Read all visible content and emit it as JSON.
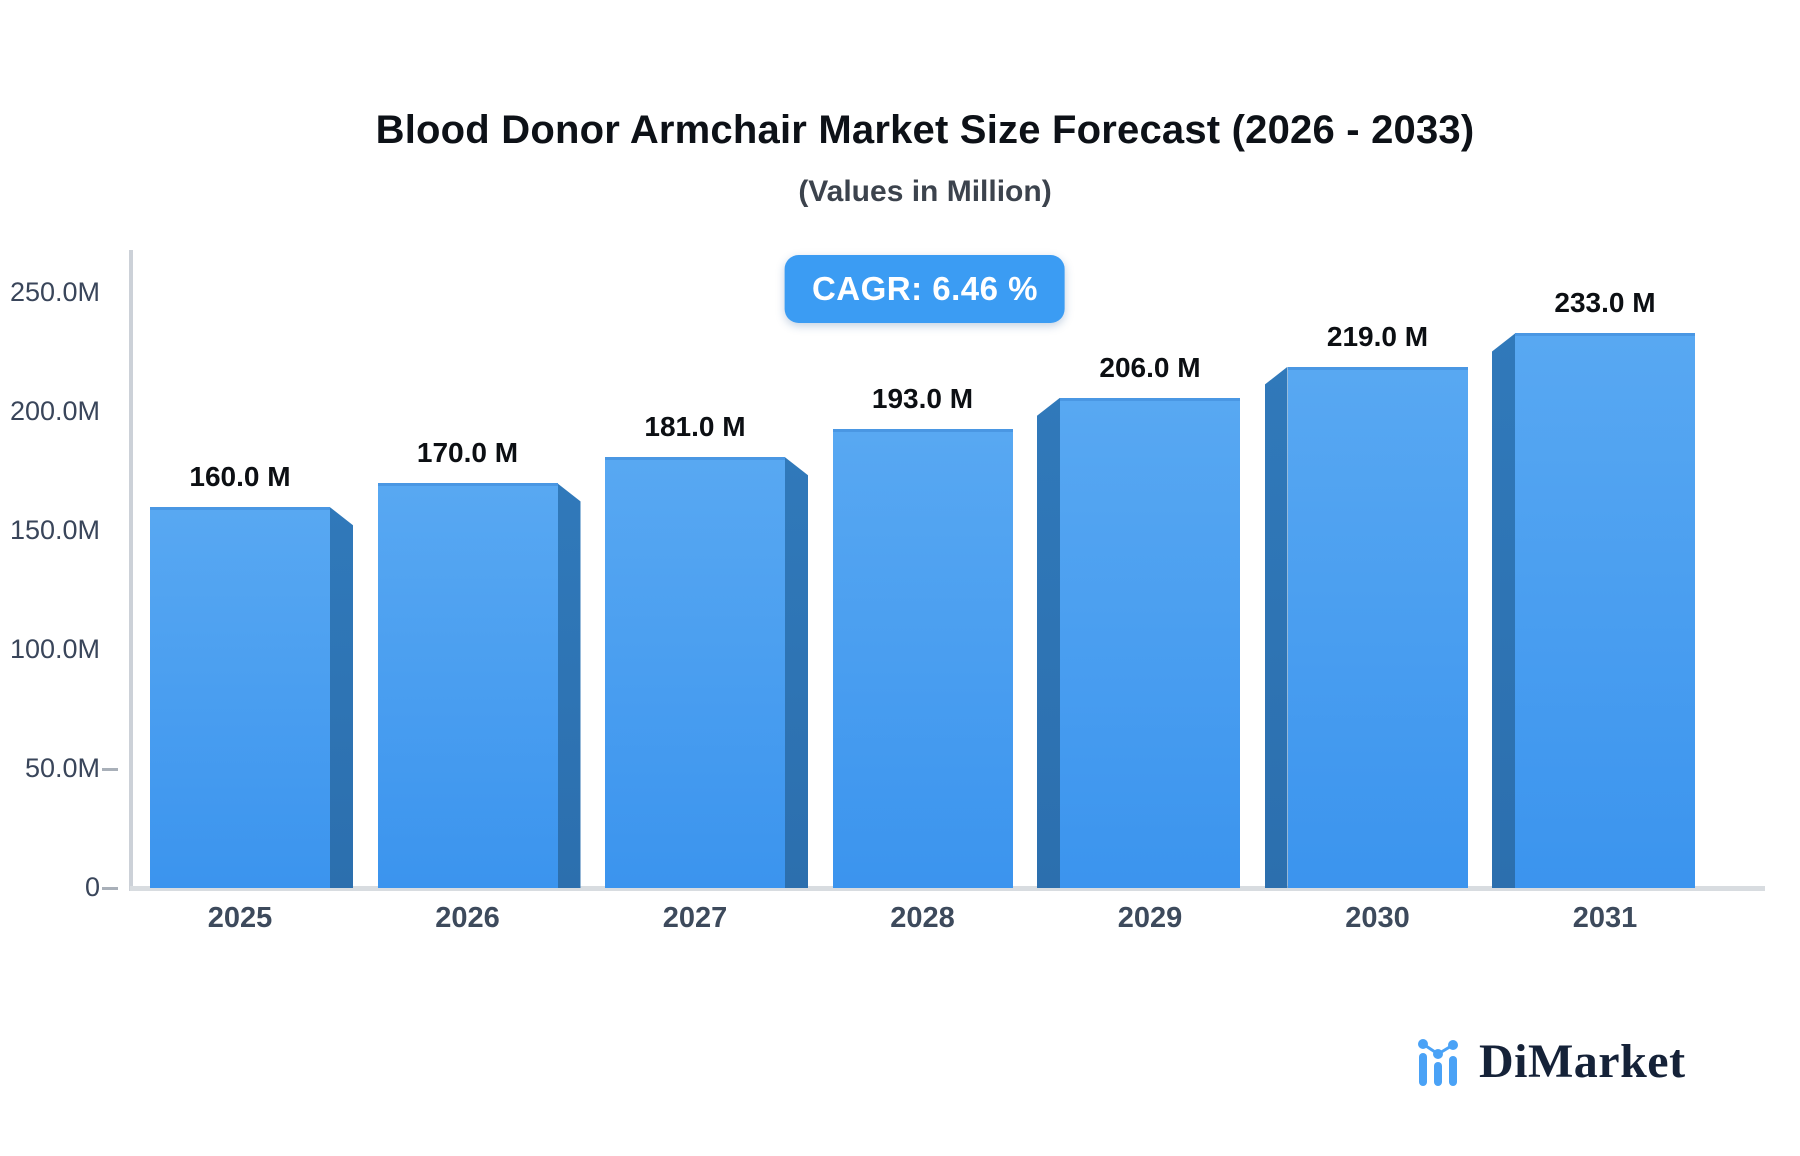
{
  "chart_data": {
    "type": "bar",
    "title": "Blood Donor Armchair Market Size Forecast (2026 - 2033)",
    "subtitle": "(Values in Million)",
    "categories": [
      "2025",
      "2026",
      "2027",
      "2028",
      "2029",
      "2030",
      "2031"
    ],
    "values": [
      160,
      170,
      181,
      193,
      206,
      219,
      233
    ],
    "value_labels": [
      "160.0 M",
      "170.0 M",
      "181.0 M",
      "193.0 M",
      "206.0 M",
      "219.0 M",
      "233.0 M"
    ],
    "unit": "Million",
    "ylim": [
      0,
      250
    ],
    "y_ticks": [
      {
        "label": "250.0M",
        "value": 250,
        "dash": false
      },
      {
        "label": "200.0M",
        "value": 200,
        "dash": false
      },
      {
        "label": "150.0M",
        "value": 150,
        "dash": false
      },
      {
        "label": "100.0M",
        "value": 100,
        "dash": false
      },
      {
        "label": "50.0M",
        "value": 50,
        "dash": true
      },
      {
        "label": "0",
        "value": 0,
        "dash": true
      }
    ],
    "grid": false,
    "legend": false
  },
  "cagr_badge": {
    "label": "CAGR: 6.46 %"
  },
  "brand": {
    "name": "DiMarket",
    "icon": "bar-chart-logo-icon"
  },
  "colors": {
    "bar_face_top": "#58a8f2",
    "bar_face_bottom": "#3b94ee",
    "bar_side_top": "#3079ba",
    "bar_side_bottom": "#2c6fae",
    "badge_blue": "#3b9cf3",
    "brand_blue": "#4aa2f6",
    "brand_navy": "#152238",
    "axis_gray": "#ccd1d8",
    "baseline_gray": "#d8dce0",
    "text_dark": "#0d1117",
    "text_slate": "#3d4a5c"
  }
}
